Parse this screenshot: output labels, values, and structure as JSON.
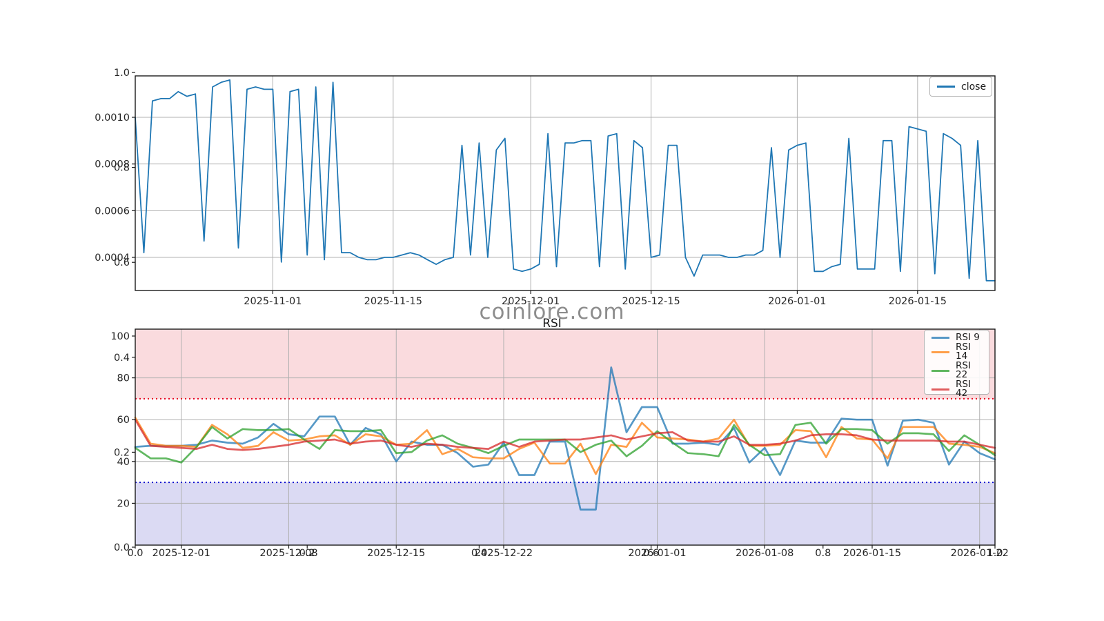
{
  "watermark": "coinlore.com",
  "figure_axis": {
    "x_tick_labels": [
      "0.0",
      "0.2",
      "0.4",
      "0.6",
      "0.8",
      "1.0"
    ],
    "x_tick_values": [
      0.0,
      0.2,
      0.4,
      0.6,
      0.8,
      1.0
    ],
    "y_tick_labels": [
      "1.0",
      "0.8",
      "0.6",
      "0.4",
      "0.2",
      "0.0"
    ],
    "y_tick_values": [
      1.0,
      0.8,
      0.6,
      0.4,
      0.2,
      0.0
    ],
    "tick_color": "#262626"
  },
  "colors": {
    "grid": "#b0b0b0",
    "axis_border": "#1a1a1a",
    "tick_text": "#262626",
    "watermark": "#8d8d8d",
    "overbought_band": "#fadbde",
    "oversold_band": "#dbdaf3",
    "overbought_line": "#e8001f",
    "oversold_line": "#0d0dcf"
  },
  "chart_data": [
    {
      "id": "price",
      "type": "line",
      "title": "",
      "legend_position": "upper right",
      "grid": true,
      "x_tick_labels": [
        "2025-11-01",
        "2025-11-15",
        "2025-12-01",
        "2025-12-15",
        "2026-01-01",
        "2026-01-15"
      ],
      "x_tick_day_offsets": [
        16,
        30,
        46,
        60,
        77,
        91
      ],
      "y_tick_labels": [
        "0.0010",
        "0.0008",
        "0.0006",
        "0.0004"
      ],
      "y_tick_values": [
        0.001,
        0.0008,
        0.0006,
        0.0004
      ],
      "ylim": [
        0.000258,
        0.001178
      ],
      "series": [
        {
          "name": "close",
          "color": "#1f77b4",
          "values": [
            0.001,
            0.00042,
            0.00107,
            0.00108,
            0.00108,
            0.00111,
            0.00109,
            0.0011,
            0.00047,
            0.00113,
            0.00115,
            0.00116,
            0.00044,
            0.00112,
            0.00113,
            0.00112,
            0.00112,
            0.00038,
            0.00111,
            0.00112,
            0.00041,
            0.00113,
            0.00039,
            0.00115,
            0.00042,
            0.00042,
            0.0004,
            0.00039,
            0.00039,
            0.0004,
            0.0004,
            0.00041,
            0.00042,
            0.00041,
            0.00039,
            0.00037,
            0.00039,
            0.0004,
            0.00088,
            0.00041,
            0.00089,
            0.0004,
            0.00086,
            0.00091,
            0.00035,
            0.00034,
            0.00035,
            0.00037,
            0.00093,
            0.00036,
            0.00089,
            0.00089,
            0.0009,
            0.0009,
            0.00036,
            0.00092,
            0.00093,
            0.00035,
            0.0009,
            0.00087,
            0.0004,
            0.00041,
            0.00088,
            0.00088,
            0.0004,
            0.00032,
            0.00041,
            0.00041,
            0.00041,
            0.0004,
            0.0004,
            0.00041,
            0.00041,
            0.00043,
            0.00087,
            0.0004,
            0.00086,
            0.00088,
            0.00089,
            0.00034,
            0.00034,
            0.00036,
            0.00037,
            0.00091,
            0.00035,
            0.00035,
            0.00035,
            0.0009,
            0.0009,
            0.00034,
            0.00096,
            0.00095,
            0.00094,
            0.00033,
            0.00093,
            0.00091,
            0.00088,
            0.00031,
            0.0009,
            0.0003,
            0.0003
          ]
        }
      ]
    },
    {
      "id": "rsi",
      "type": "line",
      "title": "RSI",
      "legend_position": "upper right",
      "grid": true,
      "overbought_level": 70,
      "oversold_level": 30,
      "ylim": [
        0,
        100
      ],
      "x_tick_labels": [
        "2025-12-01",
        "2025-12-08",
        "2025-12-15",
        "2025-12-22",
        "2026-01-01",
        "2026-01-08",
        "2026-01-15",
        "2026-01-22"
      ],
      "x_tick_day_offsets": [
        3,
        10,
        17,
        24,
        34,
        41,
        48,
        55
      ],
      "y_tick_labels": [
        "100",
        "80",
        "60",
        "40",
        "20"
      ],
      "y_tick_values": [
        100,
        80,
        60,
        40,
        20
      ],
      "series": [
        {
          "name": "RSI 9",
          "color": "rgba(31,119,180,0.75)",
          "values": [
            47,
            47.5,
            47.5,
            47.5,
            48,
            50,
            49,
            48.5,
            51.5,
            58,
            53,
            52,
            61.5,
            61.5,
            48,
            56,
            53,
            40,
            49.5,
            48,
            48,
            44,
            37.5,
            38.5,
            49,
            33.5,
            33.5,
            49.5,
            49.5,
            17,
            17,
            85,
            54,
            66,
            66,
            48.5,
            48.5,
            49,
            48,
            56,
            39.5,
            46.5,
            33.5,
            50,
            49,
            49,
            60.5,
            60,
            60,
            38,
            59.5,
            60,
            58.5,
            38.5,
            49.5,
            44,
            41
          ]
        },
        {
          "name": "RSI 14",
          "color": "rgba(255,127,14,0.75)",
          "values": [
            61,
            48.5,
            47.5,
            47.5,
            47,
            57.5,
            53,
            46.5,
            47.5,
            54,
            50,
            50.5,
            52,
            52.5,
            48,
            53,
            52,
            48,
            48.5,
            55,
            43.5,
            46,
            42,
            41.5,
            41.5,
            46,
            49,
            39,
            39,
            48.5,
            34,
            48,
            47,
            58.5,
            51.5,
            51,
            50.5,
            49.5,
            51,
            60,
            47.5,
            47.5,
            48,
            55,
            54.5,
            42,
            56.5,
            51,
            50.5,
            41.5,
            56.5,
            56.5,
            56.5,
            48.5,
            48,
            47,
            44
          ]
        },
        {
          "name": "RSI 22",
          "color": "rgba(44,160,44,0.75)",
          "values": [
            46.5,
            41.5,
            41.5,
            39.5,
            47,
            56.5,
            51,
            55.5,
            55,
            55,
            55.5,
            50.5,
            46,
            55,
            54.5,
            54.5,
            55,
            44,
            44.5,
            50,
            52.5,
            48.5,
            46.5,
            44,
            47.5,
            50.5,
            50.5,
            50.5,
            50.5,
            44.5,
            48,
            50,
            42.5,
            47.5,
            54.5,
            49,
            44,
            43.5,
            42.5,
            57.5,
            48,
            43,
            43.5,
            57.5,
            58.5,
            48.5,
            55.5,
            55.5,
            55,
            48.5,
            53.5,
            53.5,
            53,
            45,
            52.5,
            48,
            43
          ]
        },
        {
          "name": "RSI 42",
          "color": "rgba(214,39,40,0.75)",
          "values": [
            60,
            47.5,
            47,
            46.5,
            46,
            48,
            46,
            45.5,
            46,
            47,
            48,
            49.5,
            50,
            50.5,
            48.5,
            49.5,
            50,
            48,
            47,
            48.5,
            48,
            47,
            46.5,
            46,
            49.5,
            47,
            49.5,
            50,
            50.5,
            50.5,
            51.5,
            52.5,
            50.5,
            52,
            53.5,
            54,
            50,
            49.5,
            49.5,
            52,
            48,
            48,
            48.5,
            50,
            52.5,
            53,
            53,
            52.5,
            50.5,
            50,
            50,
            50,
            50,
            49.5,
            49.5,
            48,
            46.5
          ]
        }
      ]
    }
  ]
}
